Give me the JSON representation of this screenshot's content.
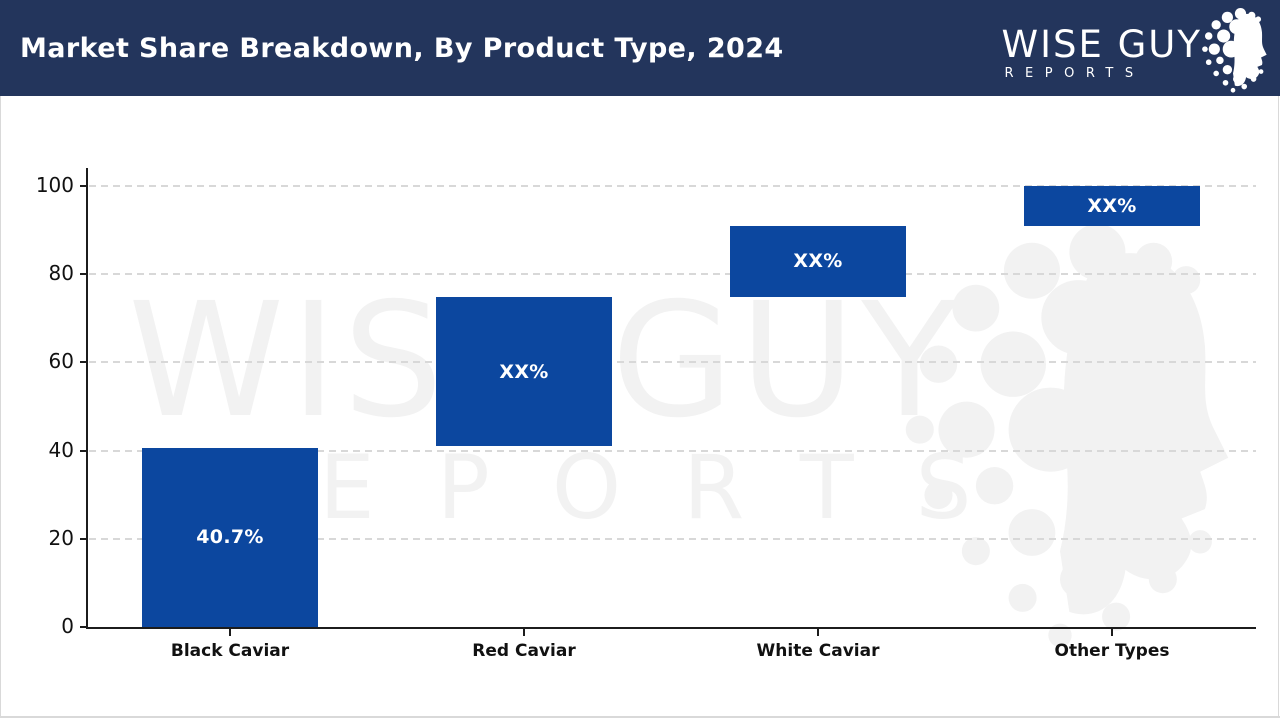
{
  "header": {
    "title": "Market Share Breakdown, By Product Type, 2024",
    "logo": {
      "line1": "WISE GUY",
      "line2": "REPORTS"
    }
  },
  "watermark": {
    "line1": "WISE GUY",
    "line2": "REPORTS"
  },
  "colors": {
    "header_bg": "#23355c",
    "bar": "#0c479f",
    "grid": "#d8d8d8",
    "axis": "#1c1c1c",
    "bar_label": "#ffffff",
    "watermark": "#f2f2f2"
  },
  "chart_data": {
    "type": "bar",
    "subtype": "waterfall",
    "title": "Market Share Breakdown, By Product Type, 2024",
    "categories": [
      "Black Caviar",
      "Red Caviar",
      "White Caviar",
      "Other Types"
    ],
    "bars": [
      {
        "category": "Black Caviar",
        "start": 0,
        "end": 40.7,
        "label": "40.7%"
      },
      {
        "category": "Red Caviar",
        "start": 41,
        "end": 74.8,
        "label": "XX%"
      },
      {
        "category": "White Caviar",
        "start": 74.8,
        "end": 91,
        "label": "XX%"
      },
      {
        "category": "Other Types",
        "start": 91,
        "end": 100,
        "label": "XX%"
      }
    ],
    "ylabel": "",
    "xlabel": "",
    "yticks": [
      0,
      20,
      40,
      60,
      80,
      100
    ],
    "ylim": [
      0,
      104
    ],
    "grid": "horizontal-dashed",
    "legend": null
  }
}
